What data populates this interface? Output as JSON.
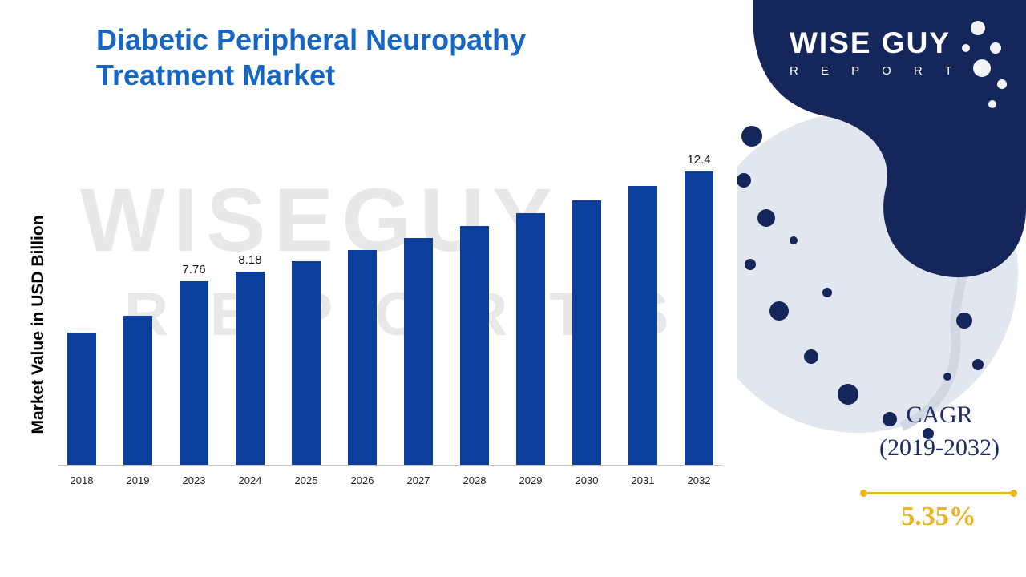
{
  "page": {
    "title_line1": "Diabetic Peripheral Neuropathy",
    "title_line2": "Treatment Market"
  },
  "logo": {
    "line1": "WISE GUY",
    "line2": "R E P O R T S"
  },
  "watermark": {
    "line1": "WISEGUY",
    "line2": "REPORTS"
  },
  "cagr": {
    "label_line1": "CAGR",
    "label_line2": "(2019-2032)",
    "value": "5.35%"
  },
  "colors": {
    "bar": "#0c3f9c",
    "navy_panel": "#15265b",
    "gold": "#ecb41d",
    "title_blue": "#1666c5",
    "watermark_gray": "#c9c9c9"
  },
  "chart_data": {
    "type": "bar",
    "title": "Diabetic Peripheral Neuropathy Treatment Market",
    "xlabel": "",
    "ylabel": "Market Value in USD Billion",
    "categories": [
      "2018",
      "2019",
      "2023",
      "2024",
      "2025",
      "2026",
      "2027",
      "2028",
      "2029",
      "2030",
      "2031",
      "2032"
    ],
    "values": [
      5.6,
      6.3,
      7.76,
      8.18,
      8.6,
      9.1,
      9.6,
      10.1,
      10.65,
      11.2,
      11.8,
      12.4
    ],
    "data_labels": {
      "2023": "7.76",
      "2024": "8.18",
      "2032": "12.4"
    },
    "ylim": [
      0,
      13
    ],
    "grid": false,
    "legend": "none",
    "cagr_label": "CAGR (2019-2032)",
    "cagr_value_pct": 5.35
  }
}
